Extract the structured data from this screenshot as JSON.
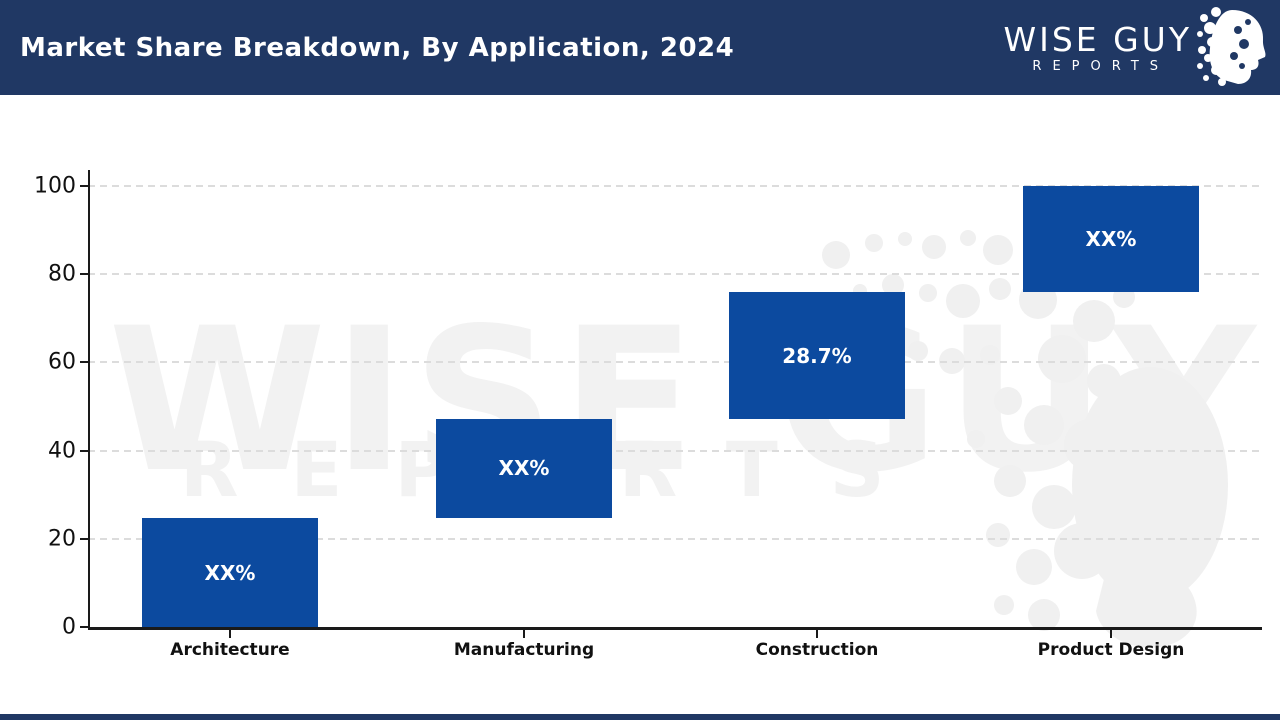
{
  "header": {
    "title": "Market Share Breakdown, By Application, 2024",
    "bg_color": "#203864",
    "logo": {
      "line1": "WISE GUY",
      "line2": "REPORTS"
    }
  },
  "watermark": {
    "line1": "WISE GUY",
    "line2": "REPORTS"
  },
  "chart_data": {
    "type": "bar",
    "variant": "waterfall",
    "title": "Market Share Breakdown, By Application, 2024",
    "categories": [
      "Architecture",
      "Manufacturing",
      "Construction",
      "Product Design"
    ],
    "segments": [
      {
        "category": "Architecture",
        "start": 0,
        "end": 24.7,
        "value": 24.7,
        "label": "XX%"
      },
      {
        "category": "Manufacturing",
        "start": 24.7,
        "end": 47.2,
        "value": 22.5,
        "label": "XX%"
      },
      {
        "category": "Construction",
        "start": 47.2,
        "end": 75.9,
        "value": 28.7,
        "label": "28.7%"
      },
      {
        "category": "Product Design",
        "start": 75.9,
        "end": 100,
        "value": 24.1,
        "label": "XX%"
      }
    ],
    "xlabel": "",
    "ylabel": "",
    "ylim": [
      0,
      100
    ],
    "yticks": [
      0,
      20,
      40,
      60,
      80,
      100
    ],
    "grid": "horizontal-dashed",
    "legend": "none",
    "bar_color": "#0c4a9f",
    "bar_label_color": "#ffffff",
    "grid_color": "#dcdcdc",
    "axis_color": "#1a1a1a"
  }
}
